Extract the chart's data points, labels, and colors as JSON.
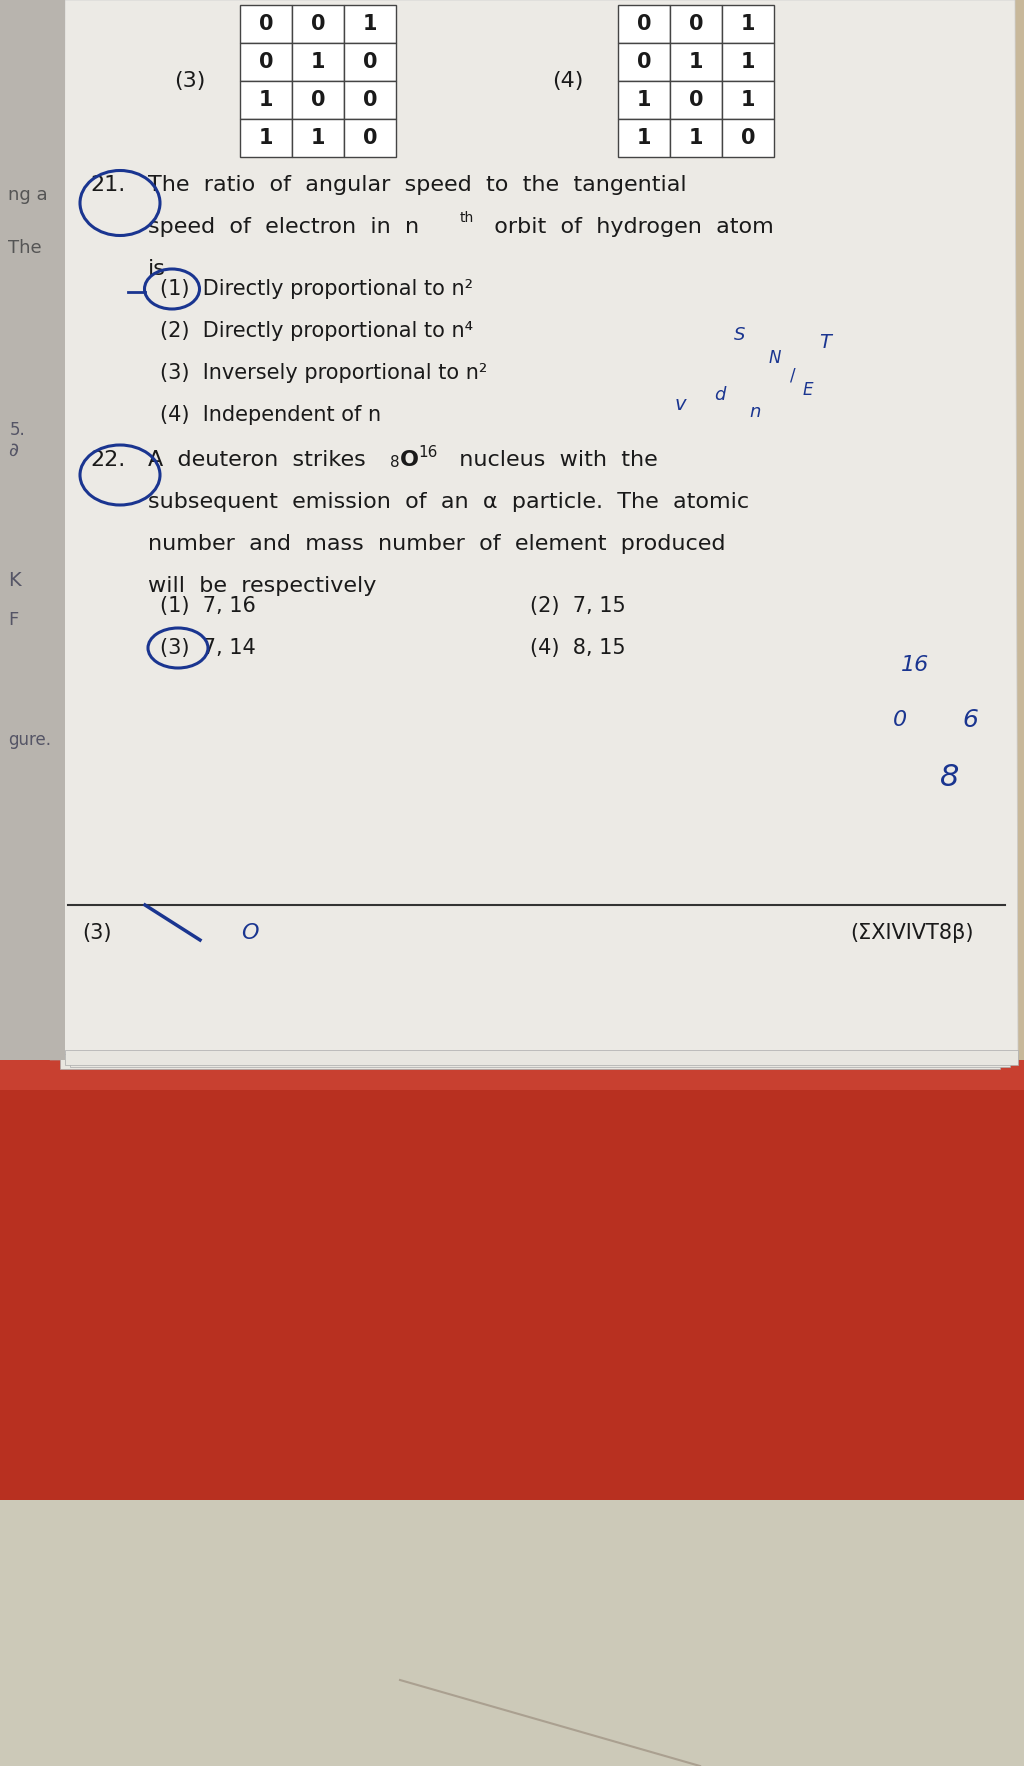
{
  "bg_color": "#c8b89a",
  "paper_color": "#eceae5",
  "paper_color2": "#e0ddd8",
  "desk_color": "#c0392b",
  "tile_color": "#d4cfc0",
  "text_color": "#1a1a1a",
  "pen_color": "#1a3590",
  "table_border": "#444444",
  "table3_header": [
    "0",
    "0",
    "1"
  ],
  "table3_data": [
    [
      "0",
      "1",
      "0"
    ],
    [
      "1",
      "0",
      "0"
    ],
    [
      "1",
      "1",
      "0"
    ]
  ],
  "table4_header": [
    "0",
    "0",
    "1"
  ],
  "table4_data": [
    [
      "0",
      "1",
      "1"
    ],
    [
      "1",
      "0",
      "1"
    ],
    [
      "1",
      "1",
      "0"
    ]
  ],
  "label3": "(3)",
  "label4": "(4)",
  "margin_left1": "ng a",
  "margin_left2": "The",
  "margin_left3": "gure.",
  "q21_num": "21.",
  "q21_line1": "The  ratio  of  angular  speed  to  the  tangential",
  "q21_line2": "speed  of  electron  in  n",
  "q21_line2b": "th",
  "q21_line2c": "  orbit  of  hydrogen  atom",
  "q21_line3": "is",
  "q21_opt1": "(1)  Directly proportional to n²",
  "q21_opt2": "(2)  Directly proportional to n⁴",
  "q21_opt3": "(3)  Inversely proportional to n²",
  "q21_opt4": "(4)  Independent of n",
  "q22_num": "22.",
  "q22_line1": "A  deuteron  strikes",
  "q22_O16": "O",
  "q22_sub8": "8",
  "q22_sup16": "16",
  "q22_line1b": "nucleus  with  the",
  "q22_line2": "subsequent  emission  of  an  α  particle.  The  atomic",
  "q22_line3": "number  and  mass  number  of  element  produced",
  "q22_line4": "will  be  respectively",
  "q22_opt1": "(1)  7, 16",
  "q22_opt2": "(2)  7, 15",
  "q22_opt3": "(3)  7, 14",
  "q22_opt4": "(4)  8, 15",
  "hw_16": "16",
  "hw_0": "0",
  "hw_6": "6",
  "hw_8": "8",
  "hw_O": "O",
  "footer_left": "(3)",
  "footer_right": "(ΣXIVIVT8β)",
  "font_body": 16,
  "font_opt": 15,
  "font_table": 15,
  "font_footer": 15
}
